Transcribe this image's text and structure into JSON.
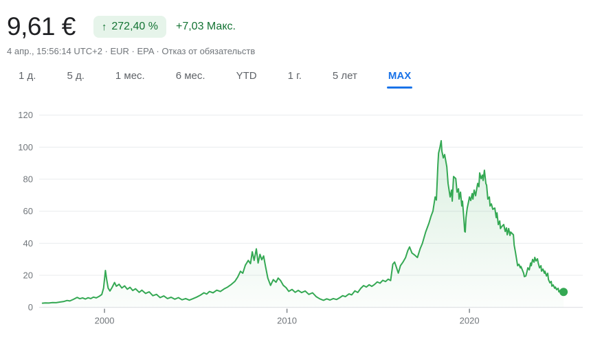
{
  "header": {
    "price": "9,61 €",
    "change_badge": {
      "arrow": "↑",
      "text": "272,40 %"
    },
    "change_abs": "+7,03 Макс.",
    "subtitle_info": "4 апр., 15:56:14 UTC+2 · EUR · EPA · ",
    "subtitle_disclaimer": "Отказ от обязательств"
  },
  "tabs": [
    {
      "label": "1 д.",
      "active": false
    },
    {
      "label": "5 д.",
      "active": false
    },
    {
      "label": "1 мес.",
      "active": false
    },
    {
      "label": "6 мес.",
      "active": false
    },
    {
      "label": "YTD",
      "active": false
    },
    {
      "label": "1 г.",
      "active": false
    },
    {
      "label": "5 лет",
      "active": false
    },
    {
      "label": "MAX",
      "active": true
    }
  ],
  "colors": {
    "price_text": "#202124",
    "positive_text": "#137333",
    "badge_bg": "#e6f4ea",
    "muted_text": "#70757a",
    "tab_text": "#5f6368",
    "active_tab": "#1a73e8",
    "line_green": "#34a853",
    "gridline": "#e9ebee",
    "axis_line": "#dadce0"
  },
  "chart_data": {
    "type": "area",
    "title": "",
    "xlabel": "",
    "ylabel": "",
    "grid": true,
    "legend": "none",
    "x_ticks": [
      2000,
      2010,
      2020
    ],
    "y_ticks": [
      0,
      20,
      40,
      60,
      80,
      100,
      120
    ],
    "xlim": [
      1996.42,
      2026.21
    ],
    "ylim": [
      0,
      120
    ],
    "line_color": "#34a853",
    "end_dot": true,
    "last_value": 9.61,
    "series": [
      {
        "name": "price_eur",
        "points": [
          [
            1996.6,
            2.6
          ],
          [
            1996.75,
            2.8
          ],
          [
            1996.95,
            2.7
          ],
          [
            1997.15,
            3.0
          ],
          [
            1997.35,
            2.9
          ],
          [
            1997.55,
            3.3
          ],
          [
            1997.75,
            3.6
          ],
          [
            1997.95,
            4.3
          ],
          [
            1998.1,
            4.0
          ],
          [
            1998.3,
            5.0
          ],
          [
            1998.5,
            6.2
          ],
          [
            1998.65,
            5.4
          ],
          [
            1998.8,
            5.9
          ],
          [
            1998.95,
            5.2
          ],
          [
            1999.1,
            6.0
          ],
          [
            1999.25,
            5.5
          ],
          [
            1999.4,
            6.4
          ],
          [
            1999.55,
            5.9
          ],
          [
            1999.7,
            6.8
          ],
          [
            1999.85,
            8.0
          ],
          [
            1999.95,
            12.0
          ],
          [
            2000.05,
            23.0
          ],
          [
            2000.12,
            17.5
          ],
          [
            2000.2,
            12.0
          ],
          [
            2000.3,
            10.2
          ],
          [
            2000.42,
            12.5
          ],
          [
            2000.55,
            15.5
          ],
          [
            2000.65,
            13.2
          ],
          [
            2000.8,
            14.4
          ],
          [
            2000.95,
            12.1
          ],
          [
            2001.1,
            13.4
          ],
          [
            2001.25,
            11.3
          ],
          [
            2001.4,
            12.5
          ],
          [
            2001.55,
            10.5
          ],
          [
            2001.7,
            11.6
          ],
          [
            2001.9,
            9.4
          ],
          [
            2002.05,
            10.7
          ],
          [
            2002.25,
            8.7
          ],
          [
            2002.45,
            9.7
          ],
          [
            2002.65,
            7.3
          ],
          [
            2002.85,
            8.1
          ],
          [
            2003.05,
            6.1
          ],
          [
            2003.25,
            7.1
          ],
          [
            2003.45,
            5.5
          ],
          [
            2003.65,
            6.3
          ],
          [
            2003.85,
            5.1
          ],
          [
            2004.05,
            6.1
          ],
          [
            2004.25,
            4.7
          ],
          [
            2004.45,
            5.5
          ],
          [
            2004.65,
            4.5
          ],
          [
            2004.85,
            5.4
          ],
          [
            2005.05,
            6.4
          ],
          [
            2005.25,
            7.6
          ],
          [
            2005.45,
            9.1
          ],
          [
            2005.6,
            8.3
          ],
          [
            2005.75,
            9.9
          ],
          [
            2005.95,
            9.1
          ],
          [
            2006.15,
            10.7
          ],
          [
            2006.35,
            9.9
          ],
          [
            2006.55,
            11.5
          ],
          [
            2006.75,
            12.7
          ],
          [
            2006.95,
            14.3
          ],
          [
            2007.15,
            16.3
          ],
          [
            2007.3,
            18.9
          ],
          [
            2007.45,
            22.5
          ],
          [
            2007.58,
            21.3
          ],
          [
            2007.72,
            26.3
          ],
          [
            2007.88,
            29.3
          ],
          [
            2008.0,
            27.3
          ],
          [
            2008.1,
            34.7
          ],
          [
            2008.2,
            29.3
          ],
          [
            2008.32,
            36.5
          ],
          [
            2008.42,
            27.7
          ],
          [
            2008.52,
            33.1
          ],
          [
            2008.62,
            29.7
          ],
          [
            2008.72,
            32.1
          ],
          [
            2008.82,
            25.7
          ],
          [
            2008.95,
            18.3
          ],
          [
            2009.1,
            13.7
          ],
          [
            2009.25,
            17.3
          ],
          [
            2009.4,
            15.7
          ],
          [
            2009.52,
            18.3
          ],
          [
            2009.65,
            16.7
          ],
          [
            2009.8,
            13.7
          ],
          [
            2009.95,
            12.3
          ],
          [
            2010.1,
            10.0
          ],
          [
            2010.28,
            11.2
          ],
          [
            2010.45,
            9.4
          ],
          [
            2010.62,
            10.6
          ],
          [
            2010.8,
            9.2
          ],
          [
            2011.0,
            10.2
          ],
          [
            2011.2,
            8.1
          ],
          [
            2011.4,
            9.1
          ],
          [
            2011.6,
            6.7
          ],
          [
            2011.8,
            5.3
          ],
          [
            2012.0,
            4.4
          ],
          [
            2012.18,
            5.3
          ],
          [
            2012.36,
            4.6
          ],
          [
            2012.54,
            5.5
          ],
          [
            2012.72,
            4.9
          ],
          [
            2012.9,
            6.1
          ],
          [
            2013.05,
            7.3
          ],
          [
            2013.2,
            6.7
          ],
          [
            2013.4,
            8.4
          ],
          [
            2013.55,
            7.8
          ],
          [
            2013.72,
            10.3
          ],
          [
            2013.88,
            9.3
          ],
          [
            2014.05,
            11.9
          ],
          [
            2014.2,
            13.6
          ],
          [
            2014.35,
            12.7
          ],
          [
            2014.5,
            14.1
          ],
          [
            2014.65,
            13.1
          ],
          [
            2014.8,
            14.3
          ],
          [
            2014.95,
            15.9
          ],
          [
            2015.1,
            15.1
          ],
          [
            2015.25,
            16.9
          ],
          [
            2015.4,
            16.1
          ],
          [
            2015.55,
            17.6
          ],
          [
            2015.68,
            16.7
          ],
          [
            2015.8,
            26.9
          ],
          [
            2015.9,
            28.3
          ],
          [
            2016.0,
            24.9
          ],
          [
            2016.1,
            21.4
          ],
          [
            2016.22,
            26.0
          ],
          [
            2016.35,
            28.1
          ],
          [
            2016.5,
            31.1
          ],
          [
            2016.62,
            35.4
          ],
          [
            2016.72,
            37.7
          ],
          [
            2016.85,
            33.9
          ],
          [
            2017.0,
            32.6
          ],
          [
            2017.15,
            31.1
          ],
          [
            2017.3,
            36.6
          ],
          [
            2017.42,
            39.9
          ],
          [
            2017.6,
            47.0
          ],
          [
            2017.78,
            52.6
          ],
          [
            2017.9,
            57.0
          ],
          [
            2018.0,
            60.1
          ],
          [
            2018.12,
            68.9
          ],
          [
            2018.19,
            67.0
          ],
          [
            2018.27,
            89.0
          ],
          [
            2018.31,
            96.3
          ],
          [
            2018.38,
            99.7
          ],
          [
            2018.45,
            104.0
          ],
          [
            2018.49,
            97.6
          ],
          [
            2018.57,
            93.3
          ],
          [
            2018.64,
            95.4
          ],
          [
            2018.76,
            87.7
          ],
          [
            2018.83,
            77.4
          ],
          [
            2018.94,
            68.9
          ],
          [
            2019.02,
            73.2
          ],
          [
            2019.06,
            66.3
          ],
          [
            2019.13,
            81.7
          ],
          [
            2019.25,
            80.4
          ],
          [
            2019.32,
            71.9
          ],
          [
            2019.4,
            74.0
          ],
          [
            2019.43,
            67.6
          ],
          [
            2019.51,
            71.9
          ],
          [
            2019.58,
            63.3
          ],
          [
            2019.62,
            66.3
          ],
          [
            2019.7,
            54.7
          ],
          [
            2019.74,
            47.4
          ],
          [
            2019.77,
            47.0
          ],
          [
            2019.81,
            56.0
          ],
          [
            2019.88,
            62.0
          ],
          [
            2019.96,
            66.3
          ],
          [
            2020.0,
            68.9
          ],
          [
            2020.07,
            66.7
          ],
          [
            2020.15,
            71.0
          ],
          [
            2020.19,
            67.6
          ],
          [
            2020.26,
            73.2
          ],
          [
            2020.34,
            69.7
          ],
          [
            2020.37,
            71.9
          ],
          [
            2020.45,
            77.4
          ],
          [
            2020.52,
            75.3
          ],
          [
            2020.56,
            83.9
          ],
          [
            2020.64,
            80.4
          ],
          [
            2020.71,
            82.6
          ],
          [
            2020.75,
            79.2
          ],
          [
            2020.82,
            85.6
          ],
          [
            2020.9,
            77.4
          ],
          [
            2020.94,
            76.2
          ],
          [
            2021.01,
            67.6
          ],
          [
            2021.09,
            68.9
          ],
          [
            2021.13,
            63.3
          ],
          [
            2021.2,
            64.6
          ],
          [
            2021.28,
            61.2
          ],
          [
            2021.39,
            62.0
          ],
          [
            2021.47,
            56.0
          ],
          [
            2021.51,
            59.0
          ],
          [
            2021.58,
            51.7
          ],
          [
            2021.66,
            53.9
          ],
          [
            2021.7,
            49.2
          ],
          [
            2021.77,
            50.4
          ],
          [
            2021.88,
            51.7
          ],
          [
            2021.96,
            47.4
          ],
          [
            2022.03,
            49.6
          ],
          [
            2022.07,
            45.3
          ],
          [
            2022.15,
            49.2
          ],
          [
            2022.22,
            44.9
          ],
          [
            2022.26,
            47.0
          ],
          [
            2022.41,
            45.3
          ],
          [
            2022.45,
            38.9
          ],
          [
            2022.52,
            34.6
          ],
          [
            2022.6,
            29.0
          ],
          [
            2022.64,
            26.0
          ],
          [
            2022.71,
            26.9
          ],
          [
            2022.79,
            24.7
          ],
          [
            2022.82,
            25.6
          ],
          [
            2022.97,
            21.3
          ],
          [
            2023.01,
            19.2
          ],
          [
            2023.09,
            19.6
          ],
          [
            2023.16,
            22.6
          ],
          [
            2023.2,
            24.7
          ],
          [
            2023.28,
            23.4
          ],
          [
            2023.35,
            27.7
          ],
          [
            2023.39,
            26.0
          ],
          [
            2023.46,
            29.9
          ],
          [
            2023.54,
            28.2
          ],
          [
            2023.58,
            31.2
          ],
          [
            2023.65,
            29.0
          ],
          [
            2023.73,
            30.3
          ],
          [
            2023.77,
            27.7
          ],
          [
            2023.84,
            24.7
          ],
          [
            2023.92,
            26.0
          ],
          [
            2023.95,
            22.6
          ],
          [
            2024.03,
            23.9
          ],
          [
            2024.11,
            21.3
          ],
          [
            2024.14,
            22.6
          ],
          [
            2024.22,
            19.6
          ],
          [
            2024.29,
            21.3
          ],
          [
            2024.33,
            17.4
          ],
          [
            2024.41,
            15.3
          ],
          [
            2024.48,
            16.2
          ],
          [
            2024.52,
            13.2
          ],
          [
            2024.59,
            14.0
          ],
          [
            2024.67,
            11.9
          ],
          [
            2024.71,
            12.7
          ],
          [
            2024.78,
            11.0
          ],
          [
            2024.86,
            11.9
          ],
          [
            2024.9,
            9.7
          ],
          [
            2024.97,
            10.6
          ],
          [
            2025.05,
            8.9
          ],
          [
            2025.08,
            11.0
          ],
          [
            2025.16,
            9.61
          ]
        ]
      }
    ]
  }
}
